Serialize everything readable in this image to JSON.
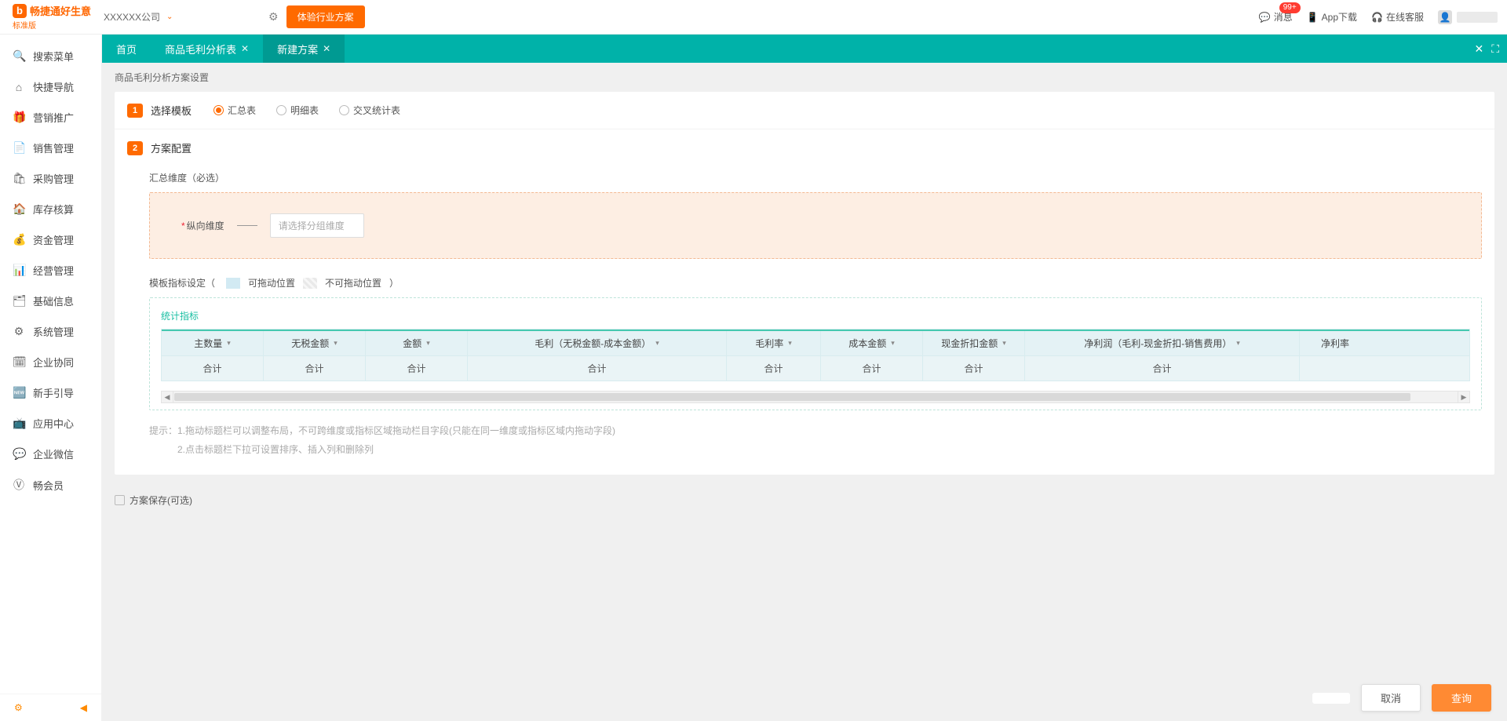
{
  "colors": {
    "brand": "#ff6a00",
    "teal": "#00b2a9",
    "tealDark": "#009a92"
  },
  "header": {
    "logoMark": "b",
    "logoText": "畅捷通好生意",
    "logoSub": "标准版",
    "company": "XXXXXX公司",
    "cta": "体验行业方案",
    "right": {
      "msg": "消息",
      "msgBadge": "99+",
      "app": "App下载",
      "service": "在线客服"
    }
  },
  "sidebar": {
    "items": [
      {
        "icon": "🔍",
        "label": "搜索菜单"
      },
      {
        "icon": "⌂",
        "label": "快捷导航"
      },
      {
        "icon": "🎁",
        "label": "营销推广"
      },
      {
        "icon": "📄",
        "label": "销售管理"
      },
      {
        "icon": "🛍",
        "label": "采购管理"
      },
      {
        "icon": "🏠",
        "label": "库存核算"
      },
      {
        "icon": "💰",
        "label": "资金管理"
      },
      {
        "icon": "📊",
        "label": "经营管理"
      },
      {
        "icon": "🗂",
        "label": "基础信息"
      },
      {
        "icon": "⚙",
        "label": "系统管理"
      },
      {
        "icon": "🗓",
        "label": "企业协同"
      },
      {
        "icon": "🆕",
        "label": "新手引导"
      },
      {
        "icon": "📺",
        "label": "应用中心"
      },
      {
        "icon": "💬",
        "label": "企业微信"
      },
      {
        "icon": "Ⓥ",
        "label": "畅会员"
      }
    ],
    "bottom": {
      "gear": "⚙",
      "collapse": "◀"
    }
  },
  "tabs": {
    "items": [
      {
        "label": "首页",
        "closable": false,
        "active": false
      },
      {
        "label": "商品毛利分析表",
        "closable": true,
        "active": false
      },
      {
        "label": "新建方案",
        "closable": true,
        "active": true
      }
    ],
    "closeAll": "✕",
    "expand": "⛶"
  },
  "breadcrumb": "商品毛利分析方案设置",
  "step1": {
    "num": "1",
    "title": "选择模板",
    "options": [
      "汇总表",
      "明细表",
      "交叉统计表"
    ],
    "selected": 0
  },
  "step2": {
    "num": "2",
    "title": "方案配置"
  },
  "dim": {
    "section": "汇总维度（必选）",
    "label": "纵向维度",
    "placeholder": "请选择分组维度"
  },
  "legend": {
    "label": "模板指标设定（",
    "drag": "可拖动位置",
    "nodrag": "不可拖动位置",
    "close": "）"
  },
  "metrics": {
    "title": "统计指标",
    "columns": [
      "主数量",
      "无税金额",
      "金额",
      "毛利（无税金额-成本金额）",
      "毛利率",
      "成本金额",
      "现金折扣金额",
      "净利润（毛利-现金折扣-销售费用）",
      "净利率"
    ],
    "sumLabel": "合计"
  },
  "hints": {
    "prefix": "提示：",
    "l1": "1.拖动标题栏可以调整布局，不可跨维度或指标区域拖动栏目字段(只能在同一维度或指标区域内拖动字段)",
    "l2": "2.点击标题栏下拉可设置排序、插入列和删除列"
  },
  "saveOpt": "方案保存(可选)",
  "footer": {
    "blank": " ",
    "cancel": "取消",
    "query": "查询"
  }
}
